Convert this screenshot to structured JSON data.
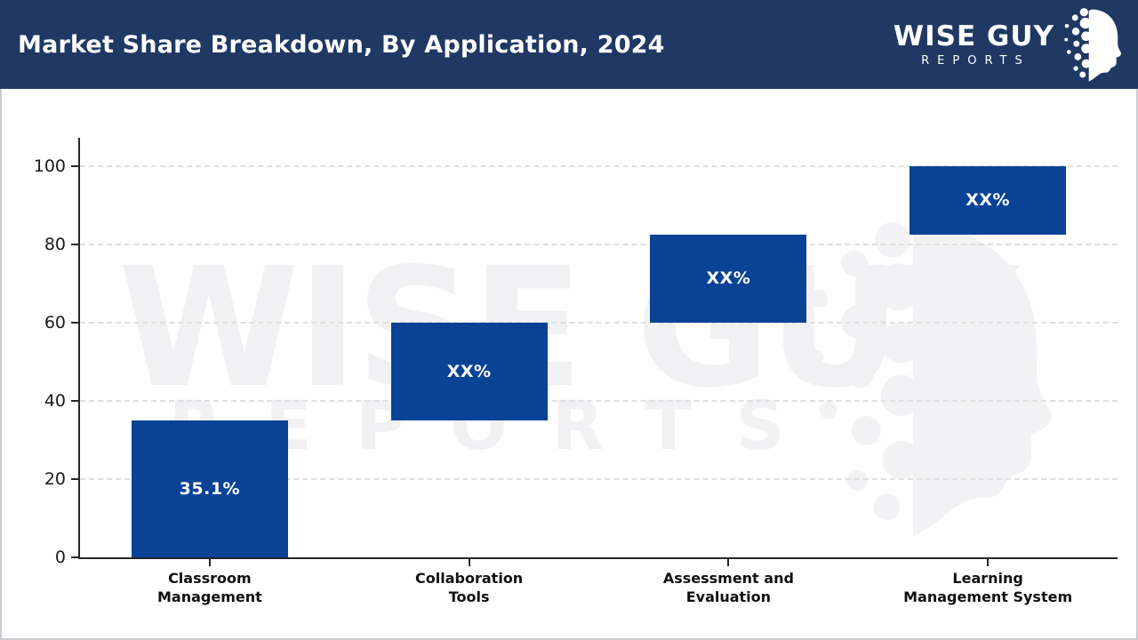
{
  "header": {
    "title": "Market Share Breakdown, By Application, 2024",
    "logo": {
      "name": "WISE GUY",
      "sub": "REPORTS"
    }
  },
  "watermark": {
    "line1": "WISE GUY",
    "line2": "REPORTS"
  },
  "chart_data": {
    "type": "bar",
    "subtype": "waterfall",
    "title": "Market Share Breakdown, By Application, 2024",
    "categories": [
      "Classroom Management",
      "Collaboration Tools",
      "Assessment and Evaluation",
      "Learning Management System"
    ],
    "category_lines": [
      [
        "Classroom",
        "Management"
      ],
      [
        "Collaboration",
        "Tools"
      ],
      [
        "Assessment and",
        "Evaluation"
      ],
      [
        "Learning",
        "Management System"
      ]
    ],
    "bars": [
      {
        "category": "Classroom Management",
        "label": "35.1%",
        "from": 0,
        "to": 35.1
      },
      {
        "category": "Collaboration Tools",
        "label": "XX%",
        "from": 35.1,
        "to": 60
      },
      {
        "category": "Assessment and Evaluation",
        "label": "XX%",
        "from": 60,
        "to": 82.6
      },
      {
        "category": "Learning Management System",
        "label": "XX%",
        "from": 82.6,
        "to": 100
      }
    ],
    "y_ticks": [
      0,
      20,
      40,
      60,
      80,
      100
    ],
    "ylim": [
      0,
      100
    ],
    "xlabel": "",
    "ylabel": "",
    "grid": "horizontal-dashed",
    "legend": "none",
    "bar_color": "#0a4296",
    "bar_label_color": "#ffffff",
    "header_color": "#1f3864"
  }
}
